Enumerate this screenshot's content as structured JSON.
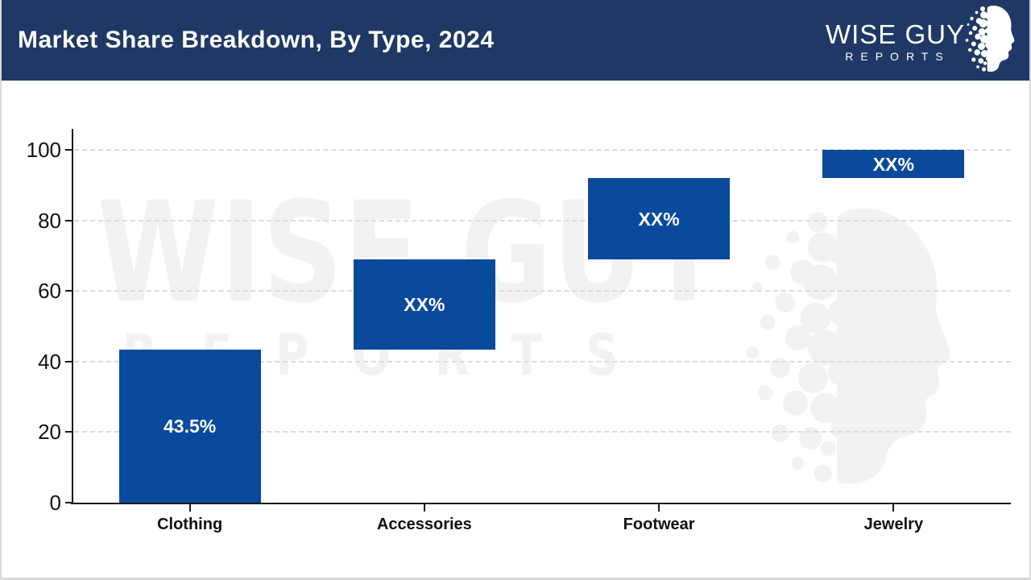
{
  "header": {
    "title": "Market Share Breakdown, By Type, 2024",
    "logo": {
      "name": "WISE GUY",
      "sub": "REPORTS"
    }
  },
  "watermark": {
    "name": "WISE GUY",
    "sub": "REPORTS"
  },
  "chart_data": {
    "type": "bar",
    "subtype": "waterfall (floating cumulative bars)",
    "title": "Market Share Breakdown, By Type, 2024",
    "categories": [
      "Clothing",
      "Accessories",
      "Footwear",
      "Jewelry"
    ],
    "series": [
      {
        "name": "Market share (%)",
        "segments": [
          {
            "category": "Clothing",
            "start": 0,
            "end": 43.5,
            "label": "43.5%"
          },
          {
            "category": "Accessories",
            "start": 43.5,
            "end": 69,
            "label": "XX%"
          },
          {
            "category": "Footwear",
            "start": 69,
            "end": 92,
            "label": "XX%"
          },
          {
            "category": "Jewelry",
            "start": 92,
            "end": 100,
            "label": "XX%"
          }
        ]
      }
    ],
    "xlabel": "",
    "ylabel": "",
    "yticks": [
      0,
      20,
      40,
      60,
      80,
      100
    ],
    "ylim": [
      0,
      106
    ],
    "grid": "horizontal dashed gridlines at y ticks",
    "legend": "none",
    "colors": {
      "bar": "#0a4a9d",
      "bar_label": "#ffffff",
      "grid": "#dcdcdc",
      "axis": "#1a1a1a",
      "tick_label": "#111111"
    }
  },
  "colors": {
    "header_bg": "#1f3865",
    "page_bg": "#ffffff",
    "frame_border": "#d9d9d9",
    "watermark": "#f2f2f2",
    "logo_text": "#ffffff"
  }
}
